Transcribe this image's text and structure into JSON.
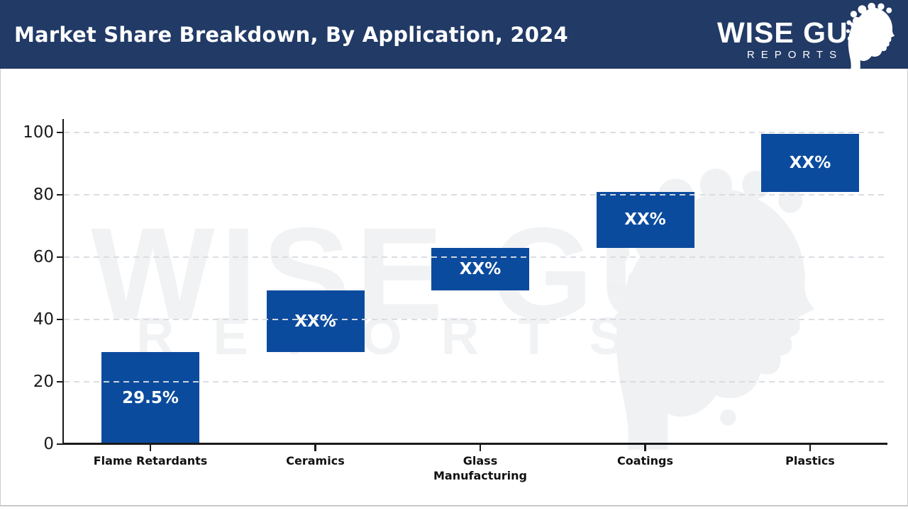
{
  "header": {
    "title": "Market Share Breakdown, By Application, 2024",
    "logo": {
      "line1": "WISE GUY",
      "line2": "REPORTS"
    }
  },
  "watermark": {
    "line1": "WISE GUY",
    "line2": "REPORTS"
  },
  "chart_data": {
    "type": "bar",
    "subtype": "waterfall (stepped stacked market-share bars)",
    "title": "Market Share Breakdown, By Application, 2024",
    "categories": [
      "Flame Retardants",
      "Ceramics",
      "Glass\nManufacturing",
      "Coatings",
      "Plastics"
    ],
    "series": [
      {
        "name": "Market share (%)",
        "segments": [
          {
            "category": "Flame Retardants",
            "start": 0,
            "end": 29.5,
            "label": "29.5%"
          },
          {
            "category": "Ceramics",
            "start": 29.5,
            "end": 49.3,
            "label": "XX%"
          },
          {
            "category": "Glass Manufacturing",
            "start": 49.3,
            "end": 63,
            "label": "XX%"
          },
          {
            "category": "Coatings",
            "start": 63,
            "end": 80.9,
            "label": "XX%"
          },
          {
            "category": "Plastics",
            "start": 80.9,
            "end": 99.6,
            "label": "XX%"
          }
        ]
      }
    ],
    "xlabel": "",
    "ylabel": "",
    "ylim": [
      0,
      100
    ],
    "yticks": [
      0,
      20,
      40,
      60,
      80,
      100
    ],
    "grid": "horizontal dashed",
    "legend": "none",
    "colors": {
      "bar": "#0B4B9E",
      "bar_label": "#FFFFFF",
      "axis": "#1A1A1A",
      "header_bg": "#213A66",
      "watermark": "#F1F2F4"
    }
  }
}
